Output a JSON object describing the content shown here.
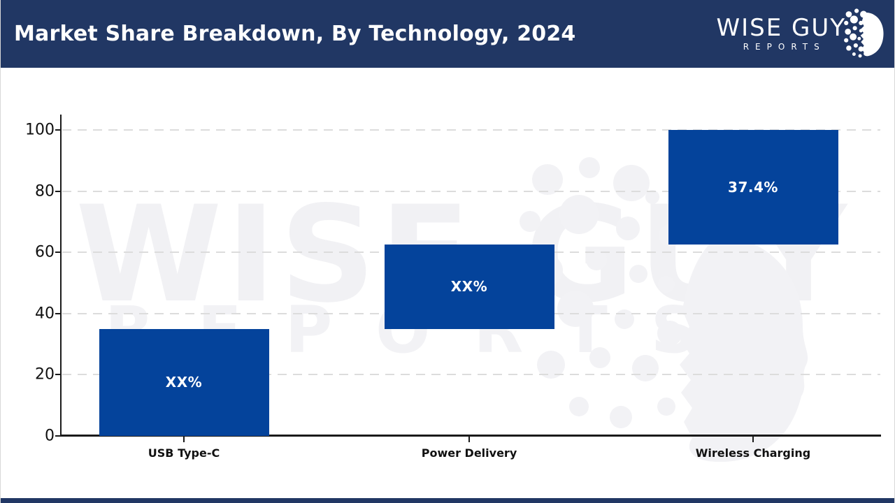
{
  "header": {
    "title": "Market Share Breakdown, By Technology, 2024",
    "bg_color": "#213764",
    "logo": {
      "line1": "WISE GUY",
      "line2": "REPORTS"
    }
  },
  "watermark": {
    "line1": "WISE GUY",
    "line2": "REPORTS"
  },
  "footer": {
    "bg_color": "#213764"
  },
  "chart_data": {
    "type": "bar",
    "subtype": "waterfall",
    "title": "Market Share Breakdown, By Technology, 2024",
    "categories": [
      "USB Type-C",
      "Power Delivery",
      "Wireless Charging"
    ],
    "series": [
      {
        "name": "Market Share",
        "segments": [
          {
            "category": "USB Type-C",
            "start": 0,
            "end": 34.8,
            "value_label": "XX%"
          },
          {
            "category": "Power Delivery",
            "start": 34.8,
            "end": 62.6,
            "value_label": "XX%"
          },
          {
            "category": "Wireless Charging",
            "start": 62.6,
            "end": 100,
            "value_label": "37.4%"
          }
        ]
      }
    ],
    "xlabel": "",
    "ylabel": "",
    "ylim": [
      0,
      105
    ],
    "yticks": [
      0,
      20,
      40,
      60,
      80,
      100
    ],
    "grid": "horizontal-dashed",
    "legend": "none",
    "bar_color": "#04439B",
    "value_label_color": "#FFFFFF",
    "grid_color": "#DCDCDC",
    "axis_color": "#1A1A1A"
  }
}
